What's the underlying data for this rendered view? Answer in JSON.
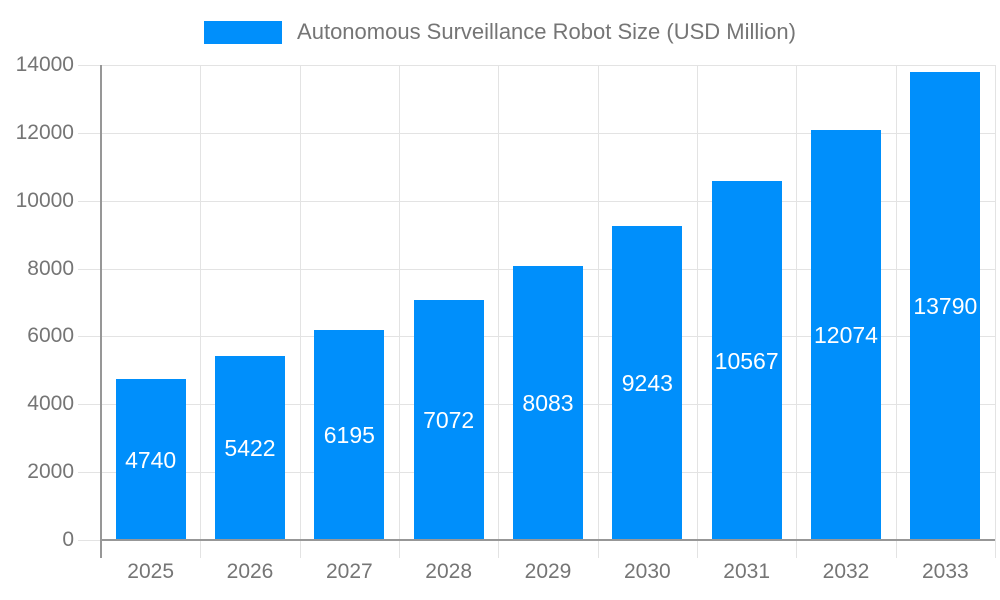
{
  "chart_data": {
    "type": "bar",
    "title": "Autonomous Surveillance Robot Size (USD Million)",
    "legend": {
      "position": "top",
      "label": "Autonomous Surveillance Robot Size (USD Million)"
    },
    "categories": [
      "2025",
      "2026",
      "2027",
      "2028",
      "2029",
      "2030",
      "2031",
      "2032",
      "2033"
    ],
    "series": [
      {
        "name": "Autonomous Surveillance Robot Size (USD Million)",
        "values": [
          4740,
          5422,
          6195,
          7072,
          8083,
          9243,
          10567,
          12074,
          13790
        ]
      }
    ],
    "value_labels": [
      "4740",
      "5422",
      "6195",
      "7072",
      "8083",
      "9243",
      "10567",
      "12074",
      "13790"
    ],
    "xlabel": "",
    "ylabel": "",
    "ylim": [
      0,
      14000
    ],
    "yticks": [
      0,
      2000,
      4000,
      6000,
      8000,
      10000,
      12000,
      14000
    ],
    "grid": true,
    "colors": {
      "bar": "#008FFB",
      "value_label_text": "#ffffff",
      "axis_text": "#757575",
      "grid_line": "#e3e3e3",
      "axis_line": "#979797",
      "background": "#ffffff"
    }
  }
}
